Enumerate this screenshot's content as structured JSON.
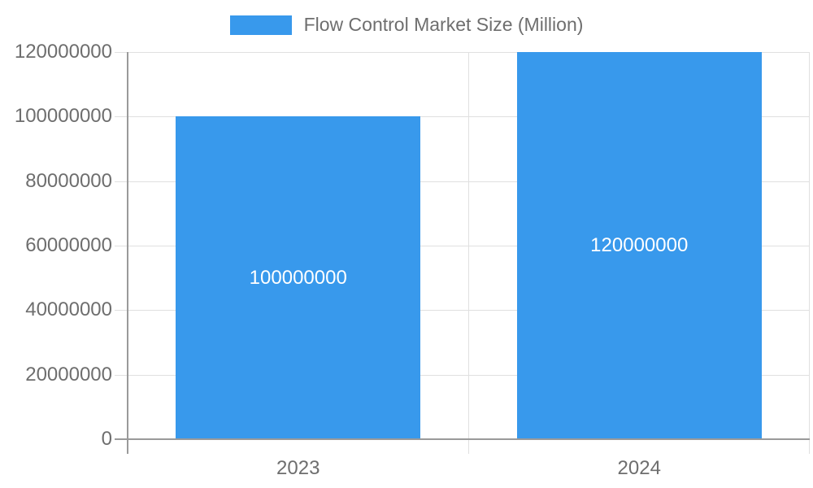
{
  "chart_data": {
    "type": "bar",
    "title": "Flow Control Market Size (Million)",
    "categories": [
      "2023",
      "2024"
    ],
    "series": [
      {
        "name": "Flow Control Market Size (Million)",
        "values": [
          100000000,
          120000000
        ]
      }
    ],
    "data_labels": [
      "100000000",
      "120000000"
    ],
    "xlabel": "",
    "ylabel": "",
    "ylim": [
      0,
      120000000
    ],
    "ytick_step": 20000000,
    "yticks": [
      0,
      20000000,
      40000000,
      60000000,
      80000000,
      100000000,
      120000000
    ],
    "ytick_labels": [
      "0",
      "20000000",
      "40000000",
      "60000000",
      "80000000",
      "100000000",
      "120000000"
    ],
    "grid": true,
    "legend_position": "top",
    "colors": {
      "bar": "#3899EC",
      "text": "#6E6E6E",
      "grid": "#E0E0E0",
      "axis": "#9A9A9A",
      "data_label": "#FFFFFF",
      "background": "#FFFFFF"
    }
  }
}
